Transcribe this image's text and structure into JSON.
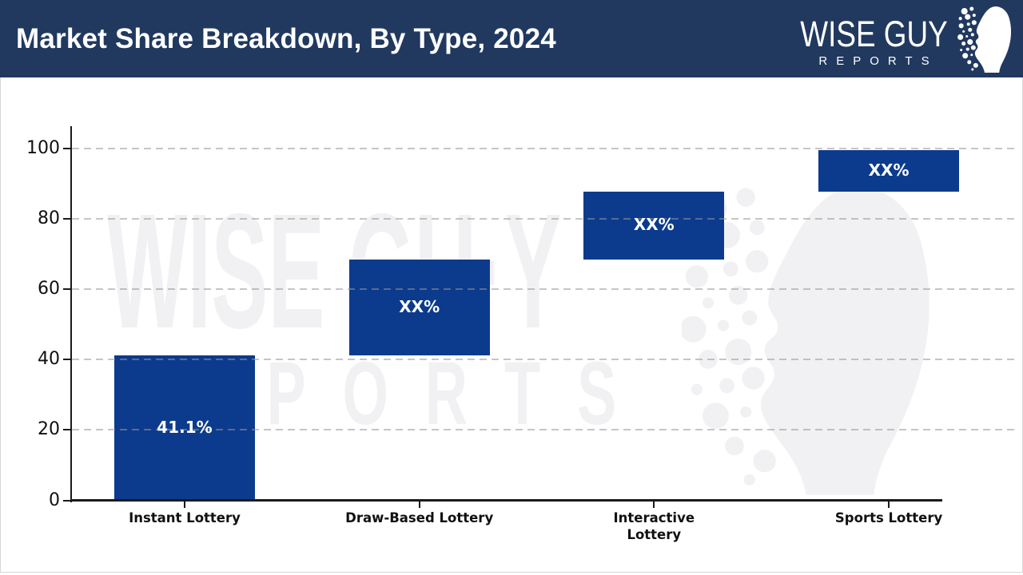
{
  "header": {
    "title": "Market Share Breakdown, By Type, 2024",
    "logo": {
      "line1": "WISE GUY",
      "line2": "REPORTS"
    }
  },
  "watermark": {
    "line1": "WISE GU·Y",
    "line2": "REPORTS"
  },
  "chart_data": {
    "type": "bar",
    "subtype": "floating-segment-waterfall",
    "title": "Market Share Breakdown, By Type, 2024",
    "categories": [
      "Instant Lottery",
      "Draw-Based Lottery",
      "Interactive\nLottery",
      "Sports Lottery"
    ],
    "series": [
      {
        "name": "Market share (%)",
        "segments": [
          {
            "category": "Instant Lottery",
            "start": 0,
            "end": 41.1,
            "value": 41.1,
            "label": "41.1%"
          },
          {
            "category": "Draw-Based Lottery",
            "start": 41.1,
            "end": 68.5,
            "value": 27.4,
            "label": "XX%"
          },
          {
            "category": "Interactive Lottery",
            "start": 68.5,
            "end": 87.7,
            "value": 19.2,
            "label": "XX%"
          },
          {
            "category": "Sports Lottery",
            "start": 87.7,
            "end": 99.5,
            "value": 11.8,
            "label": "XX%"
          }
        ]
      }
    ],
    "xlabel": "",
    "ylabel": "",
    "ylim": [
      0,
      105
    ],
    "yticks": [
      0,
      20,
      40,
      60,
      80,
      100
    ],
    "grid": "horizontal-dashed",
    "legend": "none",
    "bar_color": "#0c3b8d",
    "label_color": "#ffffff"
  },
  "colors": {
    "header_bg": "#21395f",
    "bar": "#0c3b8d",
    "watermark": "#f1f1f4",
    "grid": "#c8c8c8",
    "axis": "#1a1a1a"
  }
}
